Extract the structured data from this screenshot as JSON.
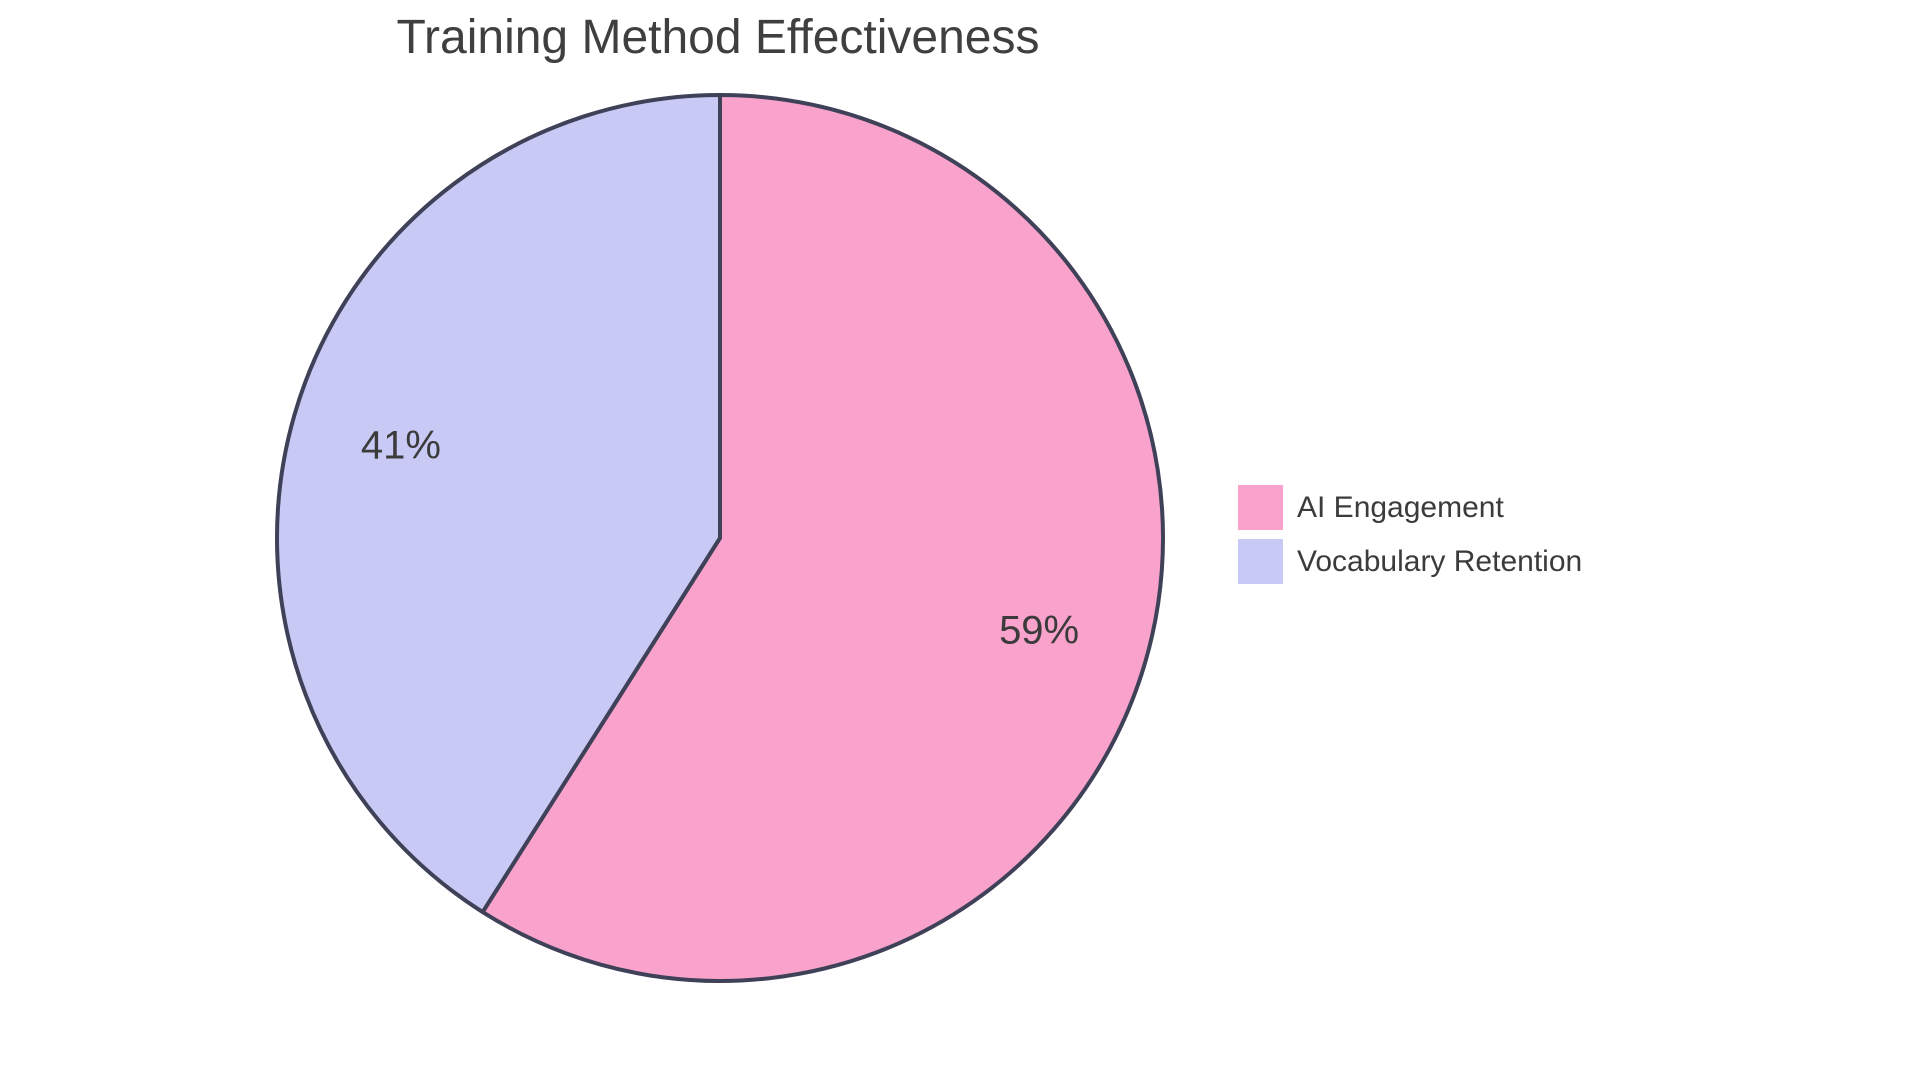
{
  "page": {
    "background_color": "#ffffff"
  },
  "chart_data": {
    "type": "pie",
    "title": "Training Method Effectiveness",
    "slices": [
      {
        "label": "AI Engagement",
        "value": 59,
        "percent_label": "59%",
        "color": "#F9A3CC"
      },
      {
        "label": "Vocabulary Retention",
        "value": 41,
        "percent_label": "41%",
        "color": "#C9C9F6"
      }
    ],
    "start_angle": "top",
    "direction": "clockwise",
    "stroke_color": "#3E4157",
    "stroke_width": 4,
    "slice_label_color": "#3B3B3B",
    "title_color": "#3F3F3F",
    "legend_position": "right",
    "legend_text_color": "#3B3B3B"
  }
}
